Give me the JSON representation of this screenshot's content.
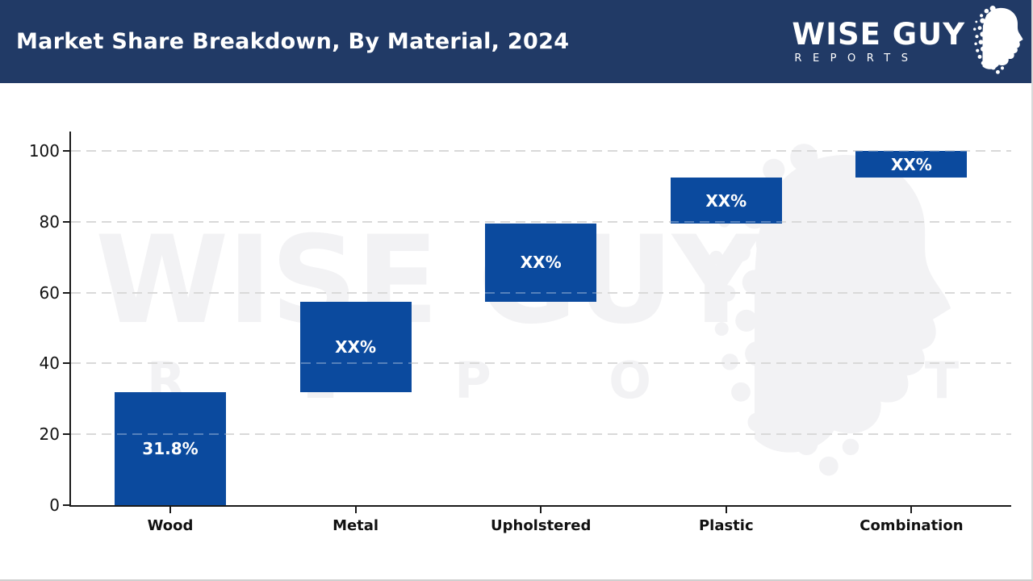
{
  "header": {
    "title": "Market Share Breakdown, By Material, 2024",
    "logo": {
      "line1": "WISE GUY",
      "line2": "REPORTS"
    }
  },
  "watermark": {
    "line1": "WISE GUY",
    "line2": "R E P O R T S"
  },
  "colors": {
    "header_bg": "#213a66",
    "bar_blue": "#0b4a9e",
    "grid_gray": "#d6d6d6",
    "axis_black": "#1a1a1a",
    "watermark_gray": "#f2f2f4"
  },
  "chart_data": {
    "type": "bar",
    "subtype": "waterfall",
    "title": "Market Share Breakdown, By Material, 2024",
    "categories": [
      "Wood",
      "Metal",
      "Upholstered",
      "Plastic",
      "Combination"
    ],
    "values": [
      31.8,
      25.6,
      22.1,
      12.9,
      7.6
    ],
    "segments": [
      {
        "category": "Wood",
        "start": 0,
        "end": 31.8,
        "label": "31.8%"
      },
      {
        "category": "Metal",
        "start": 31.8,
        "end": 57.4,
        "label": "XX%"
      },
      {
        "category": "Upholstered",
        "start": 57.4,
        "end": 79.5,
        "label": "XX%"
      },
      {
        "category": "Plastic",
        "start": 79.5,
        "end": 92.4,
        "label": "XX%"
      },
      {
        "category": "Combination",
        "start": 92.4,
        "end": 100,
        "label": "XX%"
      }
    ],
    "yticks": [
      0,
      20,
      40,
      60,
      80,
      100
    ],
    "ylim": [
      0,
      105
    ],
    "xlabel": "",
    "ylabel": "",
    "grid": "dashed-horizontal",
    "legend": "none",
    "bar_color": "#0b4a9e",
    "bar_label_color": "#ffffff"
  }
}
